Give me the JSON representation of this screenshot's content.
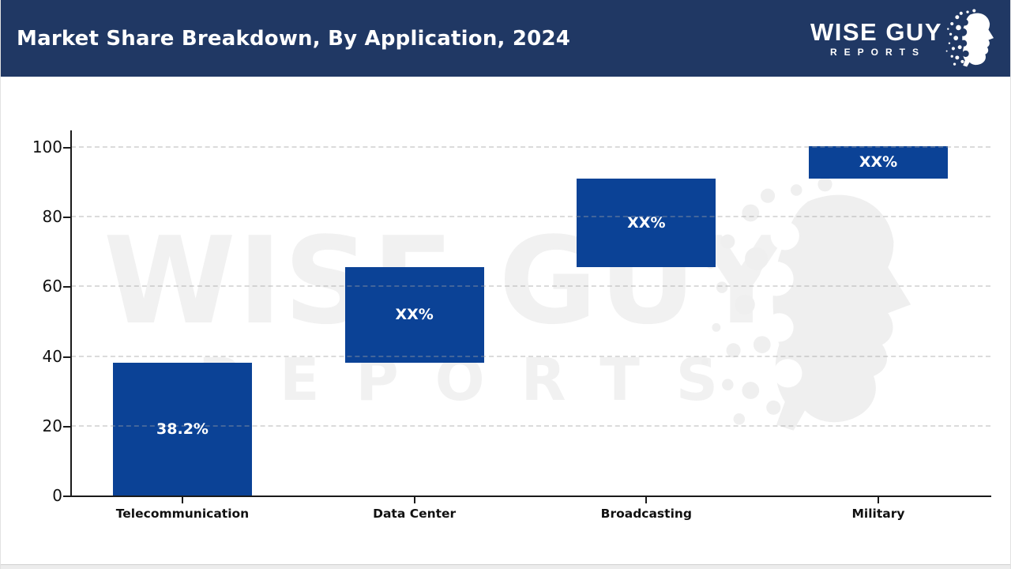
{
  "header": {
    "title": "Market Share Breakdown, By Application, 2024",
    "logo": {
      "line1": "WISE GUY",
      "line2": "REPORTS"
    }
  },
  "watermark": {
    "line1": "WISE GUY",
    "line2": "REPORTS"
  },
  "chart_data": {
    "type": "bar",
    "subtype": "waterfall-segments",
    "title": "Market Share Breakdown, By Application, 2024",
    "categories": [
      "Telecommunication",
      "Data Center",
      "Broadcasting",
      "Military"
    ],
    "segments": [
      {
        "category": "Telecommunication",
        "start": 0,
        "end": 38.2,
        "label": "38.2%"
      },
      {
        "category": "Data Center",
        "start": 38.2,
        "end": 65.5,
        "label": "XX%"
      },
      {
        "category": "Broadcasting",
        "start": 65.5,
        "end": 91,
        "label": "XX%"
      },
      {
        "category": "Military",
        "start": 91,
        "end": 100.2,
        "label": "XX%"
      }
    ],
    "y_ticks": [
      0,
      20,
      40,
      60,
      80,
      100
    ],
    "ylim": [
      0,
      105
    ],
    "xlabel": "",
    "ylabel": "",
    "grid": "horizontal-dashed",
    "legend": "none",
    "colors": {
      "header_bg": "#203864",
      "bar": "#0b4296",
      "bar_label": "#ffffff",
      "axis": "#1a1a1a",
      "grid": "#dbdbdb",
      "watermark": "#f1f1f1"
    }
  }
}
